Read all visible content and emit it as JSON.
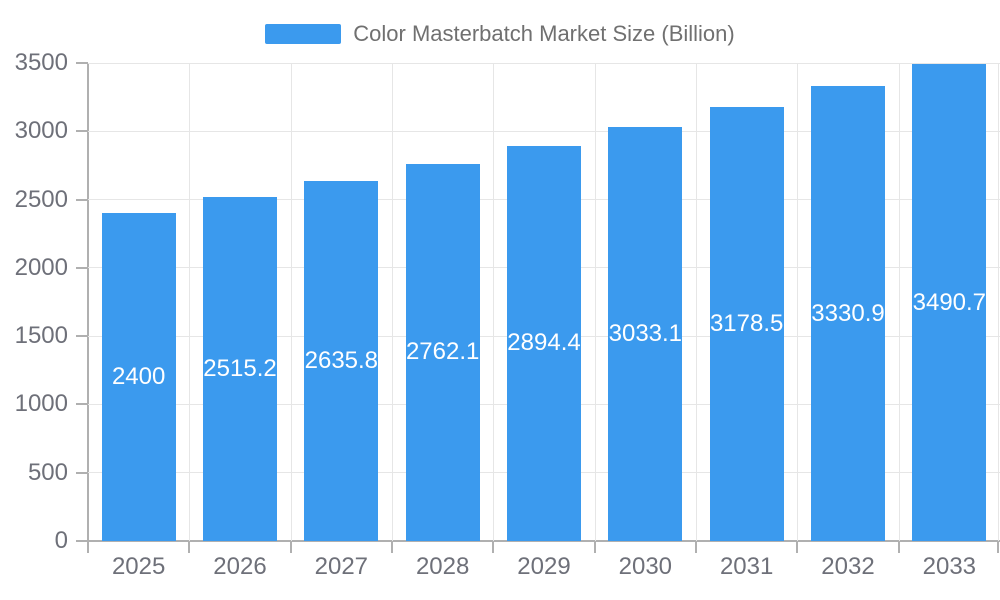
{
  "legend": {
    "position": "top",
    "items": [
      {
        "label": "Color Masterbatch Market Size (Billion)",
        "color": "#3B9AEE"
      }
    ]
  },
  "chart_data": {
    "type": "bar",
    "title": "Color Masterbatch Market Size (Billion)",
    "series_name": "Color Masterbatch Market Size (Billion)",
    "categories": [
      "2025",
      "2026",
      "2027",
      "2028",
      "2029",
      "2030",
      "2031",
      "2032",
      "2033"
    ],
    "values": [
      2400,
      2515.2,
      2635.8,
      2762.1,
      2894.4,
      3033.1,
      3178.5,
      3330.9,
      3490.7
    ],
    "xlabel": "",
    "ylabel": "",
    "ylim": [
      0,
      3500
    ],
    "y_ticks": [
      0,
      500,
      1000,
      1500,
      2000,
      2500,
      3000,
      3500
    ],
    "grid": true,
    "value_labels_visible": true,
    "value_label_position": "inside-center",
    "legend_position": "top-center",
    "colors": {
      "bar": "#3B9AEE",
      "value_label": "#FFFFFF",
      "axis_line": "#B0B0B0",
      "grid_line": "#E6E6E6",
      "axis_text": "#6E7079",
      "legend_text": "#707070",
      "background": "#FFFFFF"
    }
  }
}
